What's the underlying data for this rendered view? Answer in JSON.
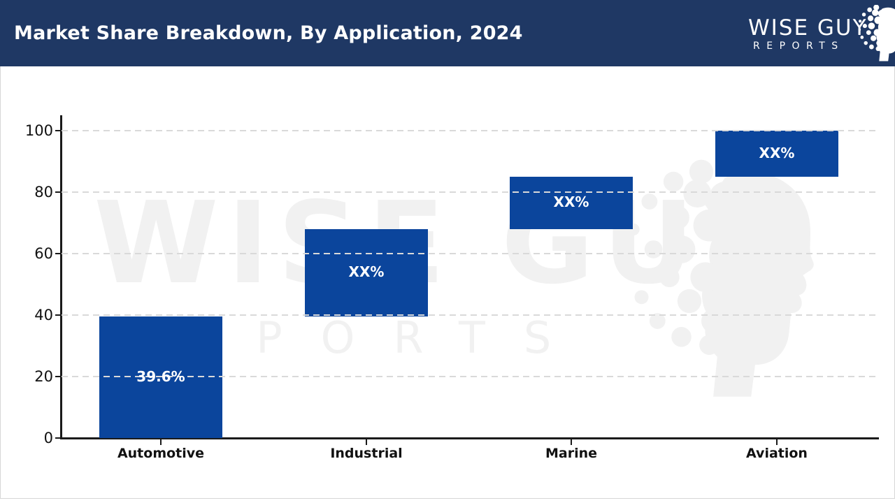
{
  "header": {
    "title": "Market Share Breakdown, By Application, 2024",
    "brand": {
      "line1": "WISE GUY",
      "line2": "REPORTS"
    },
    "bg_color": "#1f3864"
  },
  "watermark": {
    "line1": "WISE GUY",
    "line2": "REPORTS"
  },
  "chart_data": {
    "type": "bar",
    "subtype": "waterfall",
    "title": "Market Share Breakdown, By Application, 2024",
    "categories": [
      "Automotive",
      "Industrial",
      "Marine",
      "Aviation"
    ],
    "segments": [
      {
        "category": "Automotive",
        "start": 0,
        "end": 39.6,
        "label": "39.6%"
      },
      {
        "category": "Industrial",
        "start": 39.6,
        "end": 68.0,
        "label": "XX%"
      },
      {
        "category": "Marine",
        "start": 68.0,
        "end": 85.0,
        "label": "XX%"
      },
      {
        "category": "Aviation",
        "start": 85.0,
        "end": 100.0,
        "label": "XX%"
      }
    ],
    "yticks": [
      0,
      20,
      40,
      60,
      80,
      100
    ],
    "ylim": [
      0,
      105
    ],
    "xlabel": "",
    "ylabel": "",
    "bar_color": "#0b459c",
    "grid": "horizontal-dashed",
    "legend": "none"
  }
}
